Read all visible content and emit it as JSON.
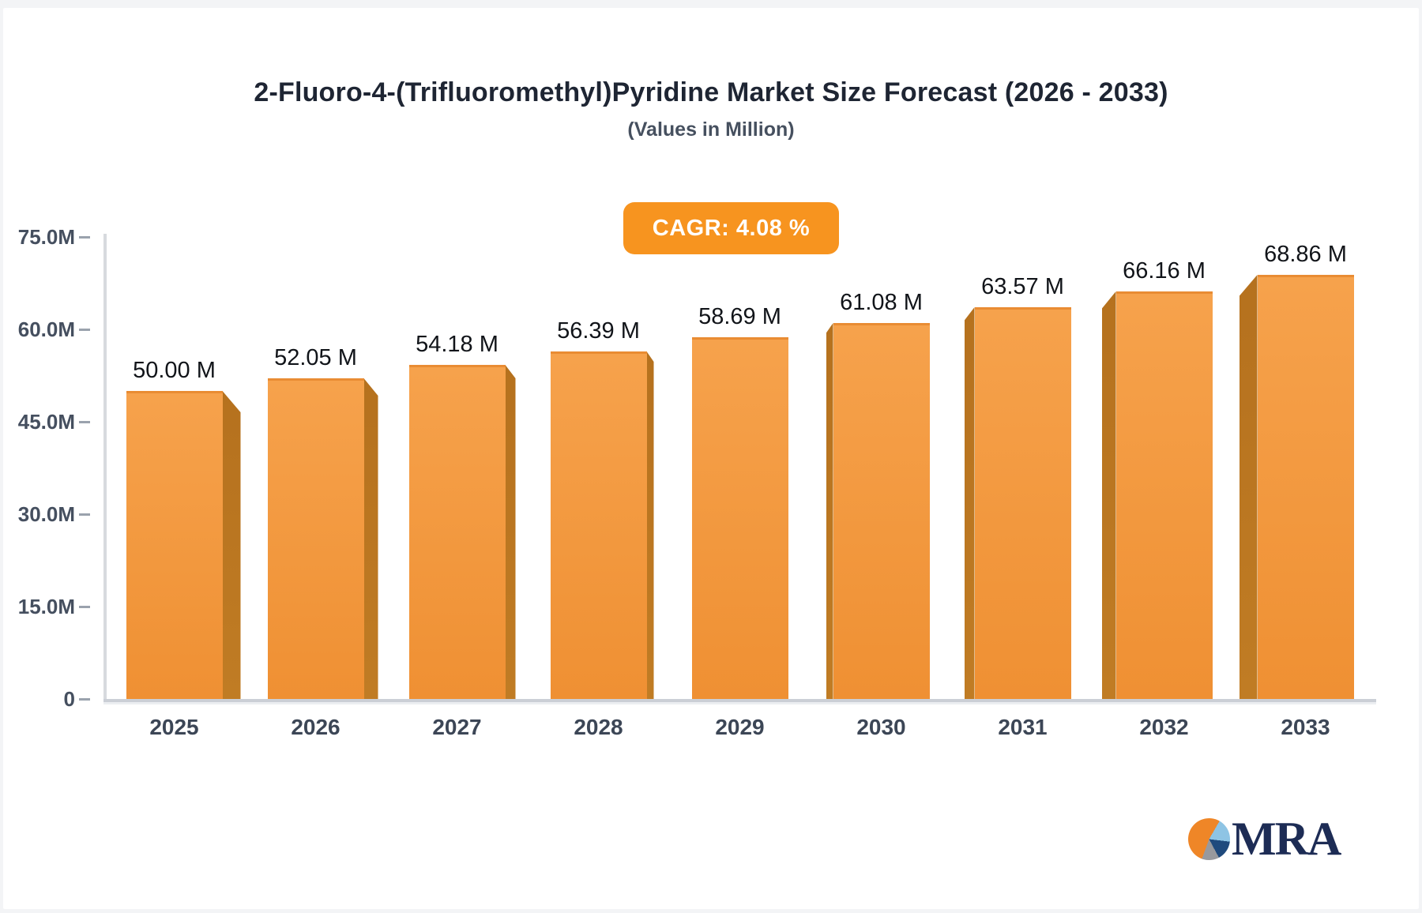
{
  "page": {
    "background": "#f3f4f6",
    "card_background": "#ffffff"
  },
  "header": {
    "title": "2-Fluoro-4-(Trifluoromethyl)Pyridine Market Size Forecast (2026 - 2033)",
    "subtitle": "(Values in Million)"
  },
  "badge": {
    "label": "CAGR: 4.08 %",
    "color": "#f7941f",
    "text_color": "#ffffff"
  },
  "brand": {
    "name": "MRA",
    "pie_colors": [
      "#ef8627",
      "#8ec4e4",
      "#1f4a7d",
      "#98999d"
    ]
  },
  "chart_data": {
    "type": "bar",
    "title": "2-Fluoro-4-(Trifluoromethyl)Pyridine Market Size Forecast (2026 - 2033)",
    "subtitle": "(Values in Million)",
    "categories": [
      "2025",
      "2026",
      "2027",
      "2028",
      "2029",
      "2030",
      "2031",
      "2032",
      "2033"
    ],
    "values": [
      50.0,
      52.05,
      54.18,
      56.39,
      58.69,
      61.08,
      63.57,
      66.16,
      68.86
    ],
    "value_labels": [
      "50.00 M",
      "52.05 M",
      "54.18 M",
      "56.39 M",
      "58.69 M",
      "61.08 M",
      "63.57 M",
      "66.16 M",
      "68.86 M"
    ],
    "xlabel": "",
    "ylabel": "",
    "ylim": [
      0,
      75
    ],
    "y_ticks": [
      {
        "label": "0",
        "value": 0
      },
      {
        "label": "15.0M",
        "value": 15
      },
      {
        "label": "30.0M",
        "value": 30
      },
      {
        "label": "45.0M",
        "value": 45
      },
      {
        "label": "60.0M",
        "value": 60
      },
      {
        "label": "75.0M",
        "value": 75
      }
    ],
    "grid": false,
    "legend": false,
    "annotations": [
      "CAGR: 4.08 %"
    ],
    "bar_face_color_top": "#f6a24c",
    "bar_face_color_bottom": "#ef9033",
    "bar_side_color": "#b5711e",
    "bar_edge_color": "#e98c33",
    "axis_color": "#cbcfd6",
    "tick_label_color": "#454f5f",
    "category_label_color": "#3c4656",
    "value_label_color": "#111419"
  }
}
